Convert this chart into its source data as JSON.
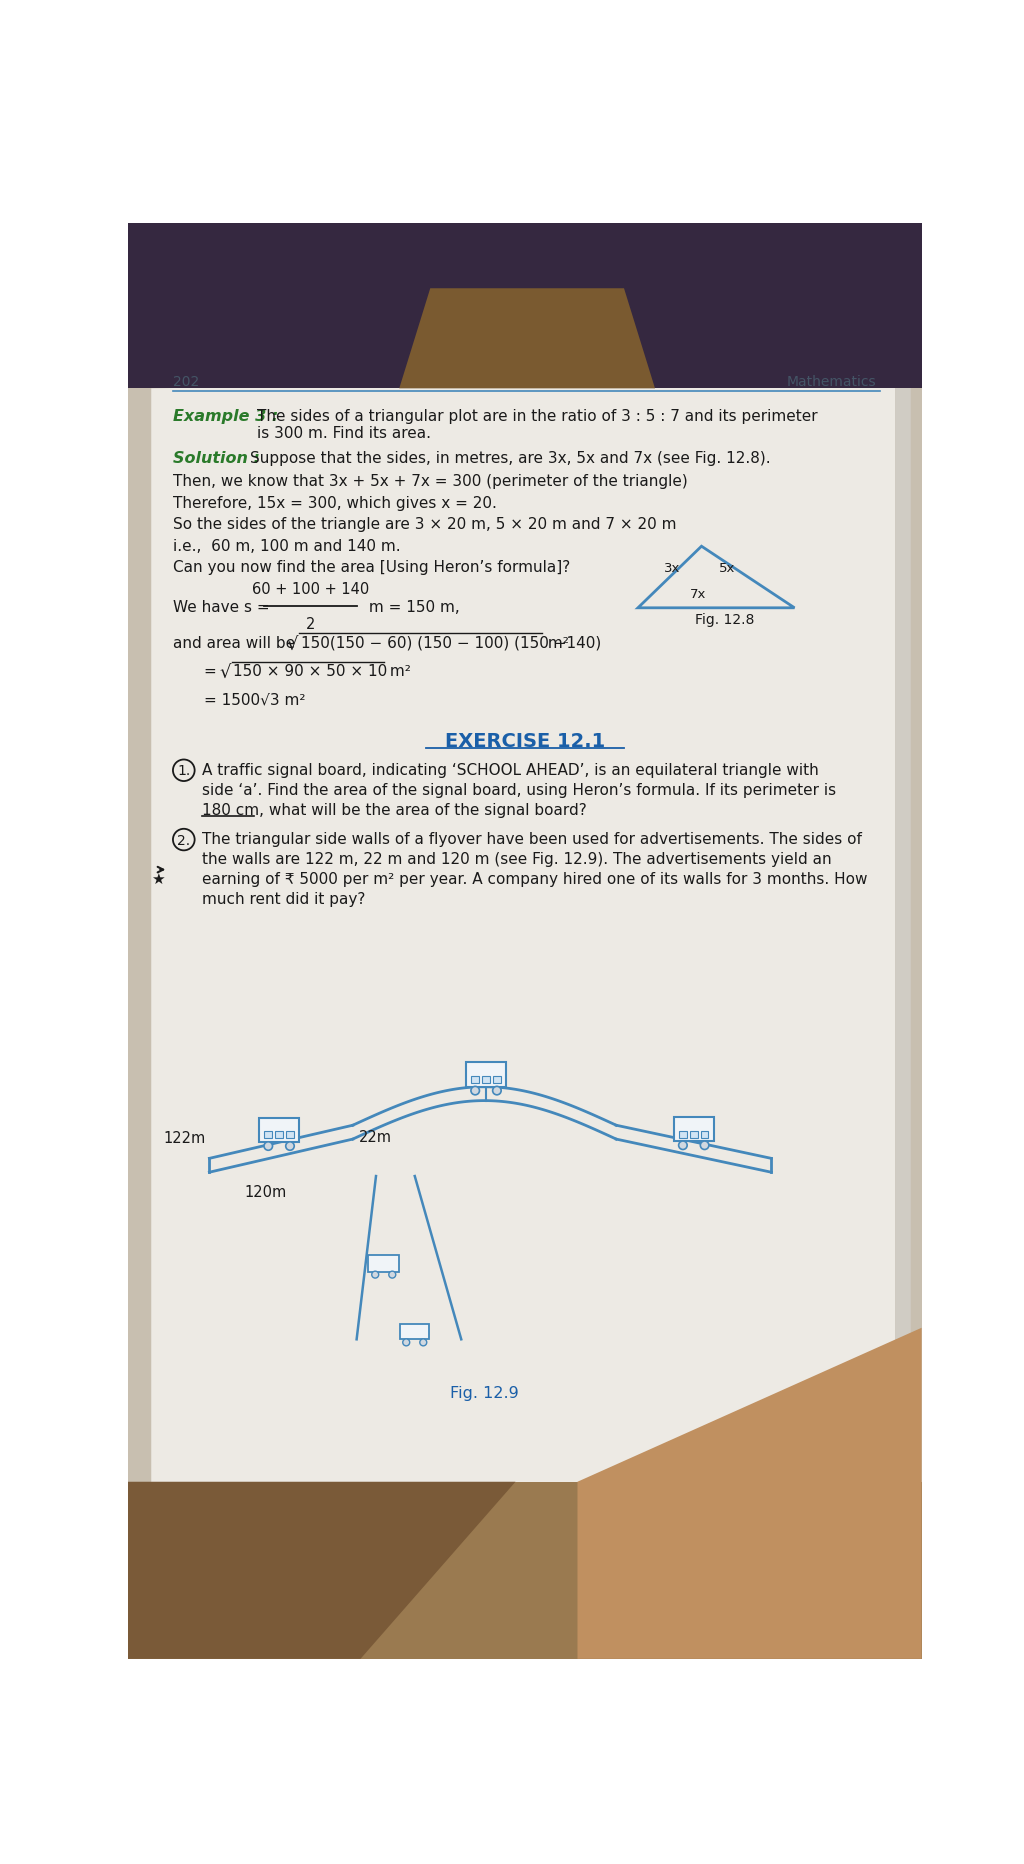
{
  "page_number": "202",
  "page_header_right": "Mathematics",
  "bg_top_color": "#4a3a5a",
  "bg_bottom_color": "#8a6a4a",
  "page_bg": "#e8e4de",
  "line_color": "#4488bb",
  "text_color": "#1a1a1a",
  "green_text": "#2a7a2a",
  "blue_bold": "#1a5fa8",
  "example_label": "Example 3 : ",
  "example_text": "The sides of a triangular plot are in the ratio of 3 : 5 : 7 and its perimeter is 300 m. Find its area.",
  "solution_label": "Solution : ",
  "solution_text": "Suppose that the sides, in metres, are 3x, 5x and 7x (see Fig. 12.8).",
  "line1": "Then, we know that 3x + 5x + 7x = 300 (perimeter of the triangle)",
  "line2": "Therefore, 15x = 300, which gives x = 20.",
  "line3": "So the sides of the triangle are 3 × 20 m, 5 × 20 m and 7 × 20 m",
  "line4": "i.e.,  60 m, 100 m and 140 m.",
  "line5": "Can you now find the area [Using Heron’s formula]?",
  "we_have_prefix": "We have s =",
  "fraction_num": "60 + 100 + 140",
  "fraction_den": "2",
  "we_have_suffix": " m = 150 m,",
  "fig_label": "Fig. 12.8",
  "area_line1_pre": "and area will be  ",
  "area_line1_sqrt": "150(150 − 60) (150 − 100) (150 −140)",
  "area_line1_post": " m²",
  "area_line2_pre": "= ",
  "area_line2_sqrt": "150 × 90 × 50 × 10",
  "area_line2_post": " m²",
  "area_line3": "= 1500√3 m²",
  "exercise_title": "EXERCISE 12.1",
  "q1_text_line1": "A traffic signal board, indicating ‘SCHOOL AHEAD’, is an equilateral triangle with",
  "q1_text_line2": "side ‘a’. Find the area of the signal board, using Heron’s formula. If its perimeter is",
  "q1_text_line3": "180 cm, what will be the area of the signal board?",
  "q2_text_line1": "The triangular side walls of a flyover have been used for advertisements. The sides of",
  "q2_text_line2": "the walls are 122 m, 22 m and 120 m (see Fig. 12.9). The advertisements yield an",
  "q2_text_line3": "earning of ₹ 5000 per m² per year. A company hired one of its walls for 3 months. How",
  "q2_text_line4": "much rent did it pay?",
  "fig_label2": "Fig. 12.9",
  "dim_122m": "122m",
  "dim_22m": "22m",
  "dim_120m": "120m",
  "bridge_color": "#4488bb",
  "finger_color": "#c8a070"
}
